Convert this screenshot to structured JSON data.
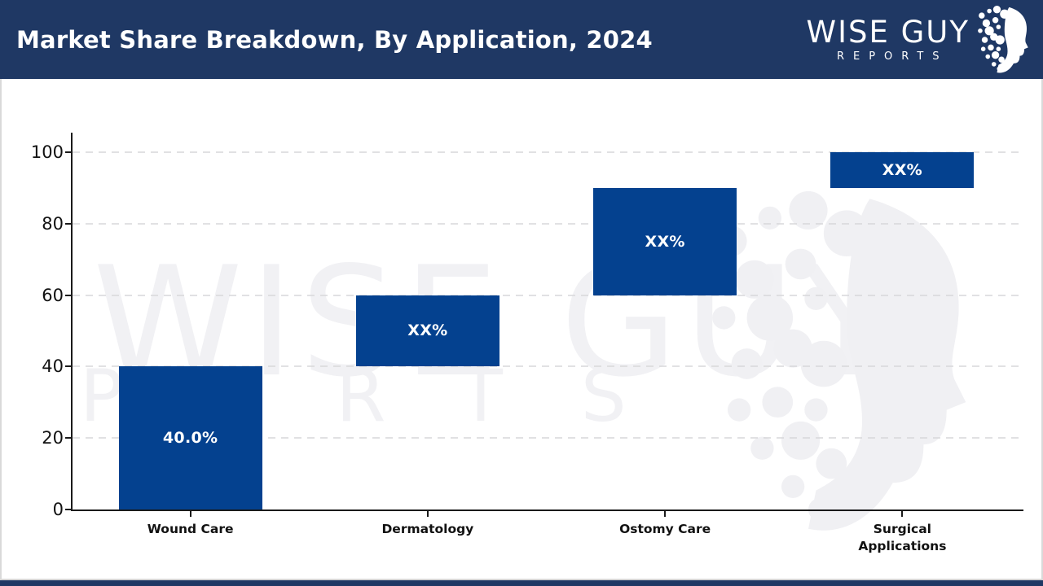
{
  "header": {
    "title": "Market Share Breakdown, By Application, 2024",
    "logo": {
      "line1": "WISE GUY",
      "line2": "REPORTS"
    }
  },
  "watermark": {
    "line1": "WISE GUY",
    "line2": "PORTS"
  },
  "colors": {
    "header_bg": "#1F3864",
    "footer_bg": "#1F3864",
    "bar": "#04418F",
    "bar_label": "#FFFFFF",
    "axis": "#1A1A1A",
    "grid": "#D7D7DA",
    "watermark": "#F1F1F4",
    "title_text": "#FFFFFF"
  },
  "chart_data": {
    "type": "bar",
    "subtype": "floating-waterfall",
    "title": "Market Share Breakdown, By Application, 2024",
    "categories": [
      "Wound Care",
      "Dermatology",
      "Ostomy Care",
      "Surgical Applications"
    ],
    "series": [
      {
        "name": "Market Share (%)",
        "segments": [
          {
            "category": "Wound Care",
            "start": 0,
            "end": 40,
            "label": "40.0%"
          },
          {
            "category": "Dermatology",
            "start": 40,
            "end": 60,
            "label": "XX%"
          },
          {
            "category": "Ostomy Care",
            "start": 60,
            "end": 90,
            "label": "XX%"
          },
          {
            "category": "Surgical Applications",
            "start": 90,
            "end": 100,
            "label": "XX%"
          }
        ]
      }
    ],
    "xlabel": "",
    "ylabel": "",
    "ylim": [
      0,
      100
    ],
    "yticks": [
      0,
      20,
      40,
      60,
      80,
      100
    ],
    "grid": "horizontal-dashed",
    "legend": "none"
  }
}
